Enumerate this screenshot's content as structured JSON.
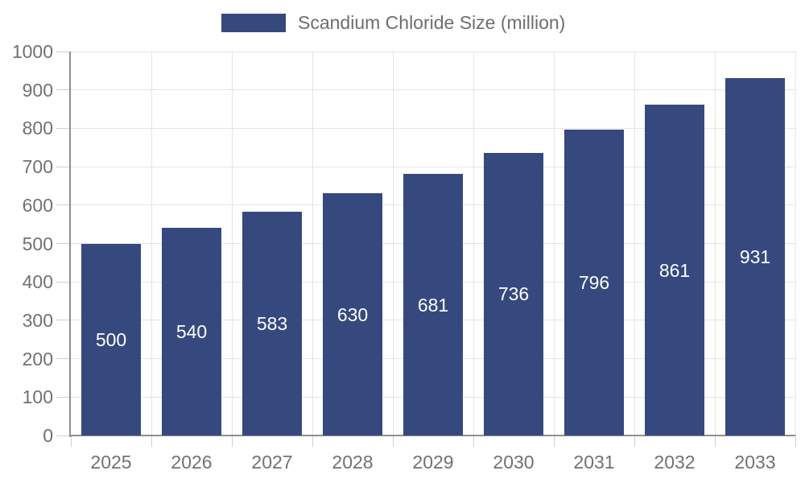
{
  "chart_data": {
    "type": "bar",
    "title": "",
    "legend_label": "Scandium Chloride Size (million)",
    "categories": [
      "2025",
      "2026",
      "2027",
      "2028",
      "2029",
      "2030",
      "2031",
      "2032",
      "2033"
    ],
    "values": [
      500,
      540,
      583,
      630,
      681,
      736,
      796,
      861,
      931
    ],
    "series": [
      {
        "name": "Scandium Chloride Size (million)",
        "values": [
          500,
          540,
          583,
          630,
          681,
          736,
          796,
          861,
          931
        ]
      }
    ],
    "xlabel": "",
    "ylabel": "",
    "ylim": [
      0,
      1000
    ],
    "ytick_step": 100,
    "ytick_labels": [
      "0",
      "100",
      "200",
      "300",
      "400",
      "500",
      "600",
      "700",
      "800",
      "900",
      "1000"
    ],
    "grid": true,
    "legend_position": "top-center",
    "value_labels_shown": true,
    "value_label_position": "inside-center"
  },
  "colors": {
    "bar": "#36497f",
    "value_label": "#ffffff",
    "axis_text": "#717171",
    "legend_text": "#6e6e6e",
    "grid_line": "#e4e4e4",
    "tick_line": "#cfcfcf",
    "axis_line": "#8f8f8f",
    "background": "#ffffff"
  }
}
